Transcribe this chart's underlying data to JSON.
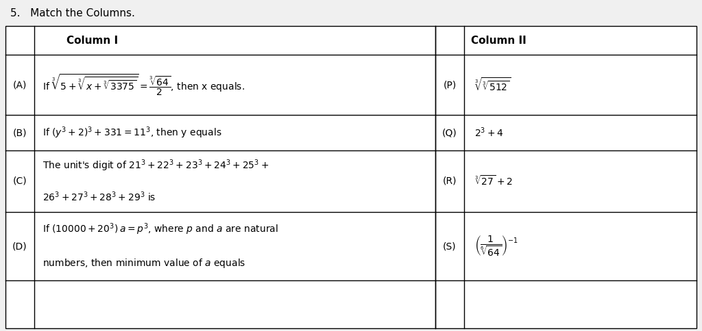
{
  "title": "Match the Columns.",
  "title_prefix": "5.",
  "background_color": "#f0f0f0",
  "table_bg": "#ffffff",
  "header_col1": "Column I",
  "header_col2": "Column II",
  "rows": [
    {
      "label_left": "(A)",
      "content_left": "If $\\sqrt[3]{5+\\sqrt[3]{x+\\sqrt[3]{3375}}}=\\dfrac{\\sqrt[3]{64}}{2}$, then x equals.",
      "label_right": "(P)",
      "content_right": "$\\sqrt[3]{\\sqrt[3]{512}}$"
    },
    {
      "label_left": "(B)",
      "content_left": "If $(y^3+2)^3+331=11^3$, then y equals",
      "label_right": "(Q)",
      "content_right": "$2^3+4$"
    },
    {
      "label_left": "(C)",
      "content_left_line1": "The unit's digit of $21^3+22^3+23^3+24^3+25^3+$",
      "content_left_line2": "$26^3+27^3+28^3+29^3$ is",
      "label_right": "(R)",
      "content_right": "$\\sqrt[3]{27}+2$"
    },
    {
      "label_left": "(D)",
      "content_left_line1": "If $(10000+20^3)\\,a=p^3$, where $p$ and $a$ are natural",
      "content_left_line2": "numbers, then minimum value of $a$ equals",
      "label_right": "(S)",
      "content_right": "$\\left(\\dfrac{1}{\\sqrt[6]{64}}\\right)^{-1}$"
    }
  ],
  "font_size_title": 11,
  "font_size_header": 11,
  "font_size_content": 10,
  "font_size_label": 10,
  "line_color": "#000000"
}
